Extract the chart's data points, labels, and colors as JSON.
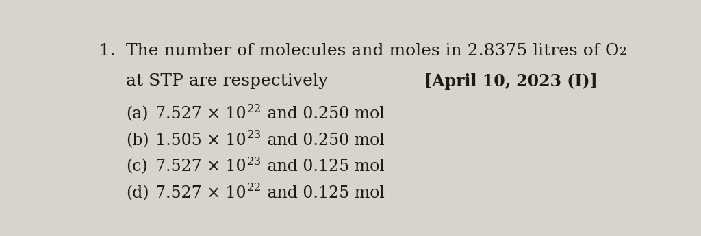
{
  "background_color": "#d8d4cc",
  "text_color": "#1a1a1a",
  "tag_color": "#2a2a2a",
  "question_num": "1.",
  "q_line1": "The number of molecules and moles in 2.8375 litres of O",
  "q_subscript": "2",
  "q_line2": "at STP are respectively",
  "tag": "[April 10, 2023 (I)]",
  "options": [
    {
      "label": "(a)",
      "main": "7.527 × 10",
      "sup": "22",
      "tail": " and 0.250 mol"
    },
    {
      "label": "(b)",
      "main": "1.505 × 10",
      "sup": "23",
      "tail": " and 0.250 mol"
    },
    {
      "label": "(c)",
      "main": "7.527 × 10",
      "sup": "23",
      "tail": " and 0.125 mol"
    },
    {
      "label": "(d)",
      "main": "7.527 × 10",
      "sup": "22",
      "tail": " and 0.125 mol"
    }
  ],
  "fs_main": 18,
  "fs_tag": 17,
  "fs_opt": 17,
  "fs_super": 12,
  "fs_sub": 12
}
